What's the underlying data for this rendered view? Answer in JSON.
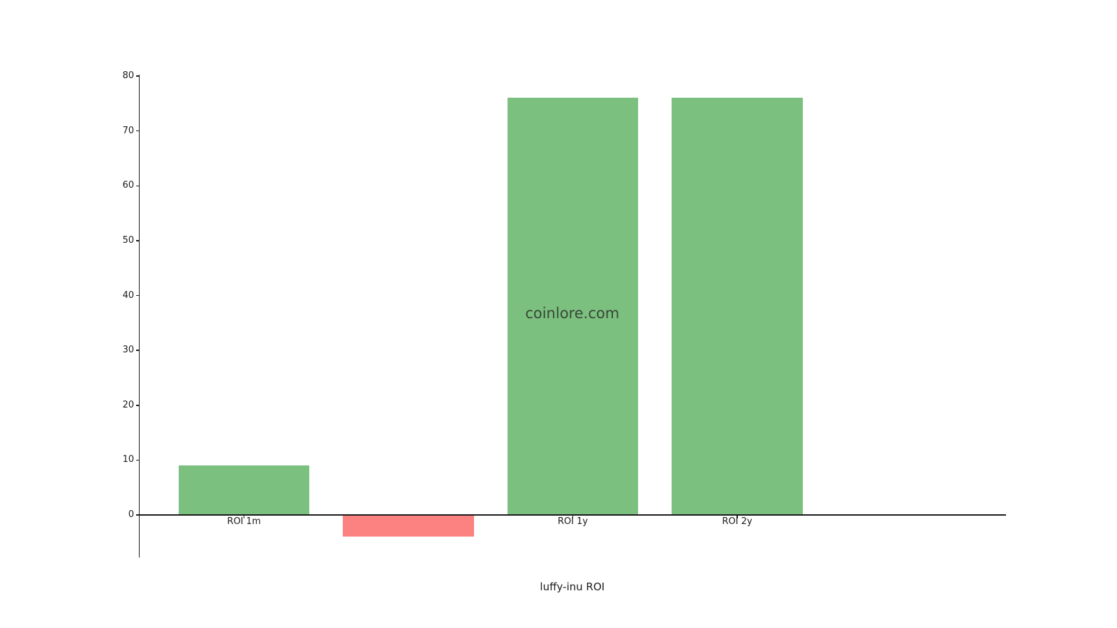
{
  "chart_data": {
    "type": "bar",
    "categories": [
      "ROI 1m",
      "",
      "ROI 1y",
      "ROI 2y"
    ],
    "values": [
      9,
      -4,
      76,
      76
    ],
    "bar_colors": [
      "#7bc07e",
      "#fc8181",
      "#7bc07e",
      "#7bc07e"
    ],
    "positive_color": "#7bc07e",
    "negative_color": "#fc8181",
    "title": "",
    "xlabel": "luffy-inu ROI",
    "ylabel": "",
    "watermark": "coinlore.com",
    "yticks": [
      0,
      10,
      20,
      30,
      40,
      50,
      60,
      70,
      80
    ],
    "ylim": [
      -8,
      80.3
    ],
    "grid": false,
    "legend": null
  },
  "colors": {
    "axis": "#1a1a1a",
    "tick_text": "#1a1a1a",
    "watermark_text": "rgba(40,40,40,0.8)",
    "background": "#ffffff"
  }
}
